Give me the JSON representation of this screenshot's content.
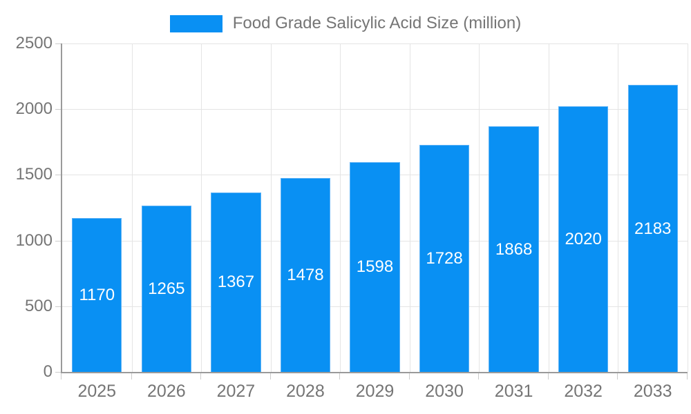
{
  "chart_data": {
    "type": "bar",
    "title": "Food Grade Salicylic Acid Size (million)",
    "legend": [
      "Food Grade Salicylic Acid Size (million)"
    ],
    "legend_position": "top",
    "categories": [
      "2025",
      "2026",
      "2027",
      "2028",
      "2029",
      "2030",
      "2031",
      "2032",
      "2033"
    ],
    "values": [
      1170,
      1265,
      1367,
      1478,
      1598,
      1728,
      1868,
      2020,
      2183
    ],
    "xlabel": "",
    "ylabel": "",
    "ylim": [
      0,
      2500
    ],
    "yticks": [
      0,
      500,
      1000,
      1500,
      2000,
      2500
    ],
    "grid": true,
    "bar_label_position": "inside-center",
    "colors": {
      "bar": "#0990f3",
      "bar_edge": "#5db2f6",
      "bar_label": "#ffffff",
      "axis_text": "#757575",
      "axis_line": "#9a9a9a",
      "gridline": "#e4e4e4",
      "tick": "#cccccc",
      "background": "#ffffff"
    }
  }
}
